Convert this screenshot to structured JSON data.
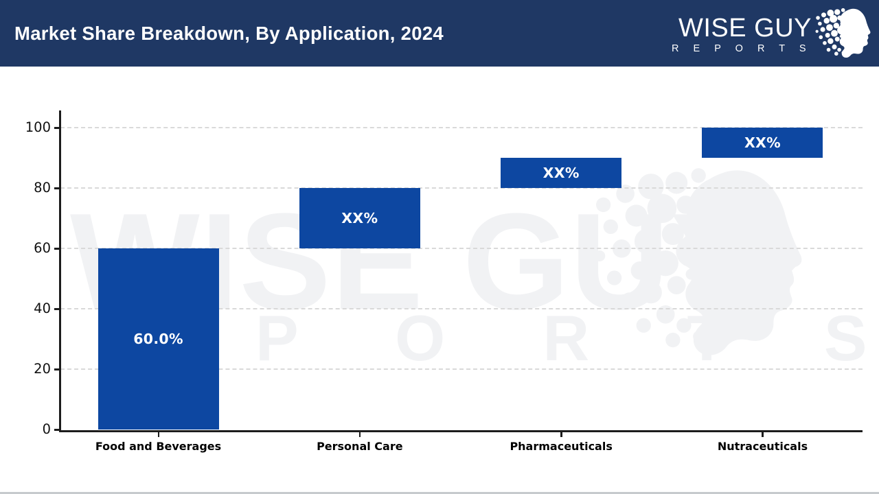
{
  "header": {
    "title": "Market Share Breakdown, By Application, 2024",
    "logo": {
      "name": "Wise Guy Reports",
      "line1": "WISE GUY",
      "line2": "R E P O R T S"
    }
  },
  "watermark": {
    "line1": "WISE GUY",
    "line2": "P O R T S"
  },
  "colors": {
    "header_bg": "#1f3864",
    "bar": "#0d47a1",
    "bar_label": "#ffffff",
    "axis": "#1c1c1c",
    "grid": "#d9d9d9",
    "tick_label": "#111111",
    "watermark": "#f1f2f4",
    "logo_fg": "#ffffff"
  },
  "chart_data": {
    "type": "bar",
    "variant": "waterfall",
    "title": "Market Share Breakdown, By Application, 2024",
    "categories": [
      "Food and Beverages",
      "Personal Care",
      "Pharmaceuticals",
      "Nutraceuticals"
    ],
    "segments": [
      {
        "category": "Food and Beverages",
        "start": 0,
        "end": 60,
        "value": 60,
        "label": "60.0%"
      },
      {
        "category": "Personal Care",
        "start": 60,
        "end": 80,
        "value": 20,
        "label": "XX%"
      },
      {
        "category": "Pharmaceuticals",
        "start": 80,
        "end": 90,
        "value": 10,
        "label": "XX%"
      },
      {
        "category": "Nutraceuticals",
        "start": 90,
        "end": 100,
        "value": 10,
        "label": "XX%"
      }
    ],
    "unit": "%",
    "ylim": [
      0,
      100
    ],
    "yticks": [
      0,
      20,
      40,
      60,
      80,
      100
    ],
    "xlabel": "",
    "ylabel": "",
    "grid": "horizontal-dashed",
    "legend": "none"
  }
}
